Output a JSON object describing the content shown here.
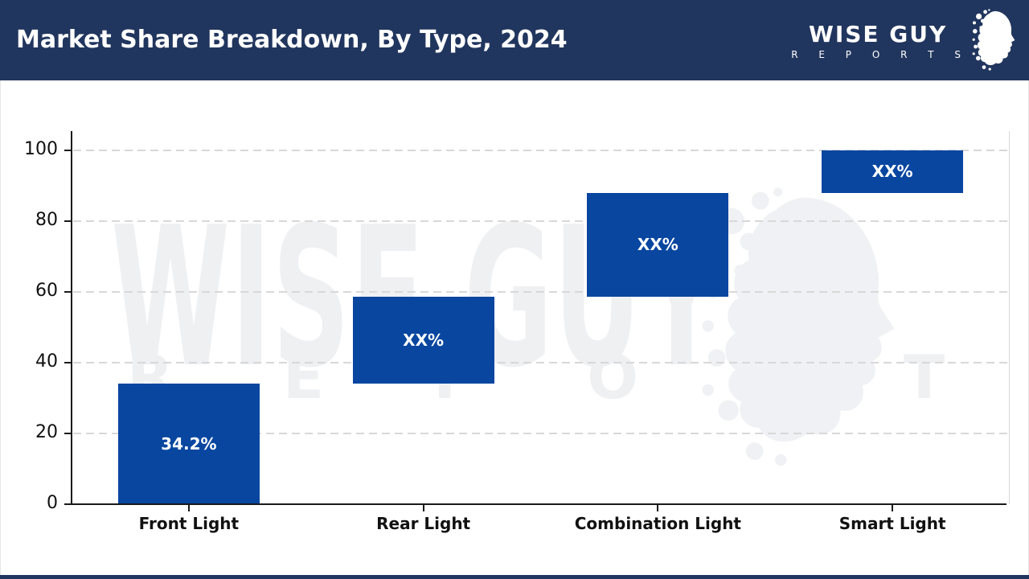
{
  "header": {
    "title": "Market Share Breakdown, By Type, 2024",
    "logo": {
      "name": "WISE GUY",
      "sub": "R E P O R T S"
    }
  },
  "watermark": {
    "line1": "WISE GUY",
    "line2": "R E P O R T S"
  },
  "chart_data": {
    "type": "bar",
    "subtype": "floating-waterfall",
    "title": "Market Share Breakdown, By Type, 2024",
    "categories": [
      "Front Light",
      "Rear Light",
      "Combination Light",
      "Smart Light"
    ],
    "series": [
      {
        "name": "Market Share",
        "segments": [
          {
            "category": "Front Light",
            "start": 0,
            "end": 34.2,
            "label": "34.2%"
          },
          {
            "category": "Rear Light",
            "start": 34.2,
            "end": 58.6,
            "label": "XX%"
          },
          {
            "category": "Combination Light",
            "start": 58.6,
            "end": 88.0,
            "label": "XX%"
          },
          {
            "category": "Smart Light",
            "start": 88.0,
            "end": 100,
            "label": "XX%"
          }
        ]
      }
    ],
    "xlabel": "",
    "ylabel": "",
    "ylim": [
      0,
      105.5
    ],
    "yticks": [
      0,
      20,
      40,
      60,
      80,
      100
    ],
    "grid": "horizontal dashed",
    "legend_position": "none",
    "bar_color": "#0846a0",
    "bar_label_color": "#ffffff"
  },
  "colors": {
    "header_bg": "#21365e",
    "footer_bg": "#21365e",
    "axis": "#1a1a1a",
    "gridline": "#d8d8d8",
    "watermark": "#eff0f2"
  }
}
